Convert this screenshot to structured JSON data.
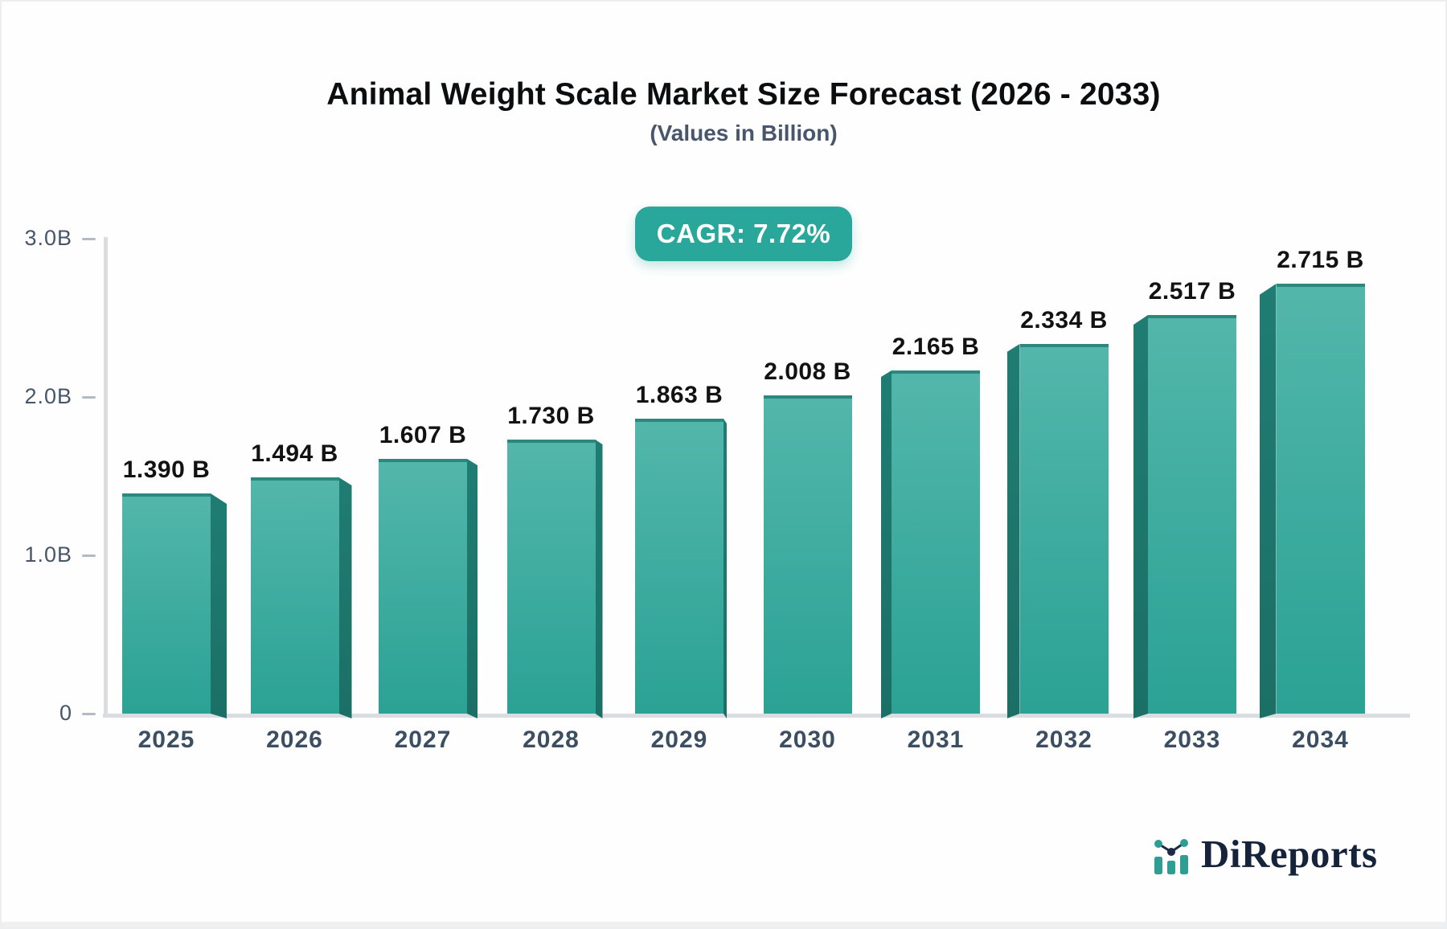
{
  "header": {
    "title": "Animal Weight Scale Market Size Forecast (2026 - 2033)",
    "subtitle": "(Values in Billion)",
    "cagr_badge": "CAGR: 7.72%"
  },
  "chart_data": {
    "type": "bar",
    "title": "Animal Weight Scale Market Size Forecast (2026 - 2033)",
    "subtitle": "(Values in Billion)",
    "cagr": "7.72%",
    "unit": "Billion",
    "categories": [
      "2025",
      "2026",
      "2027",
      "2028",
      "2029",
      "2030",
      "2031",
      "2032",
      "2033",
      "2034"
    ],
    "values": [
      1.39,
      1.494,
      1.607,
      1.73,
      1.863,
      2.008,
      2.165,
      2.334,
      2.517,
      2.715
    ],
    "bar_labels": [
      "1.390 B",
      "1.494 B",
      "1.607 B",
      "1.730 B",
      "1.863 B",
      "2.008 B",
      "2.165 B",
      "2.334 B",
      "2.517 B",
      "2.715 B"
    ],
    "ylim": [
      0,
      3.0
    ],
    "yticks": [
      {
        "label": "3.0B",
        "value": 3.0
      },
      {
        "label": "2.0B",
        "value": 2.0
      },
      {
        "label": "1.0B",
        "value": 1.0
      },
      {
        "label": "0",
        "value": 0
      }
    ],
    "grid": false,
    "legend": false,
    "colors": {
      "bar_face_top": "#53b6ab",
      "bar_face_bottom": "#2aa294",
      "bar_top_edge": "#2c887d",
      "bar_side": "#1f7d73",
      "badge_background": "#2aa79b",
      "axis_line": "#d9dce1",
      "tick_text": "#46566a",
      "value_text": "#121212"
    }
  },
  "branding": {
    "name": "DiReports",
    "logo_teal": "#2e9e94",
    "logo_navy": "#1b2b44"
  }
}
